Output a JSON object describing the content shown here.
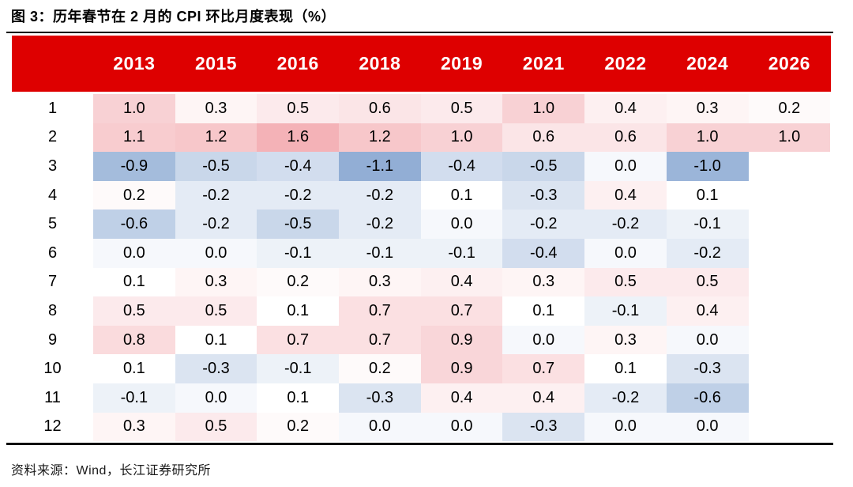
{
  "figure": {
    "title": "图 3：历年春节在 2 月的 CPI 环比月度表现（%）",
    "source": "资料来源：Wind，长江证券研究所"
  },
  "colors": {
    "header_bg": "#de0000",
    "header_text": "#ffffff",
    "positive_max_color": "#f4b2b7",
    "negative_max_color": "#92aed5",
    "rule_color": "#000000"
  },
  "chart_data": {
    "type": "heatmap",
    "title": "历年春节在 2 月的 CPI 环比月度表现（%）",
    "columns": [
      "2013",
      "2015",
      "2016",
      "2018",
      "2019",
      "2021",
      "2022",
      "2024",
      "2026"
    ],
    "rows": [
      "1",
      "2",
      "3",
      "4",
      "5",
      "6",
      "7",
      "8",
      "9",
      "10",
      "11",
      "12"
    ],
    "values": [
      [
        1.0,
        0.3,
        0.5,
        0.6,
        0.5,
        1.0,
        0.4,
        0.3,
        0.2
      ],
      [
        1.1,
        1.2,
        1.6,
        1.2,
        1.0,
        0.6,
        0.6,
        1.0,
        1.0
      ],
      [
        -0.9,
        -0.5,
        -0.4,
        -1.1,
        -0.4,
        -0.5,
        0.0,
        -1.0,
        null
      ],
      [
        0.2,
        -0.2,
        -0.2,
        -0.2,
        0.1,
        -0.3,
        0.4,
        0.1,
        null
      ],
      [
        -0.6,
        -0.2,
        -0.5,
        -0.2,
        0.0,
        -0.2,
        -0.2,
        -0.1,
        null
      ],
      [
        0.0,
        0.0,
        -0.1,
        -0.1,
        -0.1,
        -0.4,
        0.0,
        -0.2,
        null
      ],
      [
        0.1,
        0.3,
        0.2,
        0.3,
        0.4,
        0.3,
        0.5,
        0.5,
        null
      ],
      [
        0.5,
        0.5,
        0.1,
        0.7,
        0.7,
        0.1,
        -0.1,
        0.4,
        null
      ],
      [
        0.8,
        0.1,
        0.7,
        0.7,
        0.9,
        0.0,
        0.3,
        0.0,
        null
      ],
      [
        0.1,
        -0.3,
        -0.1,
        0.2,
        0.9,
        0.7,
        0.1,
        -0.3,
        null
      ],
      [
        -0.1,
        0.0,
        0.1,
        -0.3,
        0.4,
        0.4,
        -0.2,
        -0.6,
        null
      ],
      [
        0.3,
        0.5,
        0.2,
        0.0,
        0.0,
        -0.3,
        0.0,
        0.0,
        null
      ]
    ],
    "color_scale": {
      "midpoint": 0.1,
      "max": 1.6,
      "min": -1.1
    },
    "legend": "off",
    "grid": "off"
  }
}
